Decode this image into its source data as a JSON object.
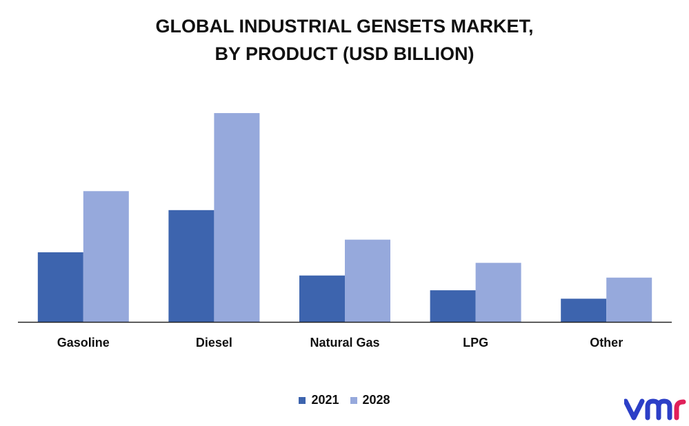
{
  "title_lines": [
    "GLOBAL INDUSTRIAL GENSETS MARKET,",
    "BY PRODUCT (USD BILLION)"
  ],
  "logo_text": "vmr",
  "chart_data": {
    "type": "bar",
    "title": "GLOBAL INDUSTRIAL GENSETS MARKET, BY PRODUCT (USD BILLION)",
    "categories": [
      "Gasoline",
      "Diesel",
      "Natural Gas",
      "LPG",
      "Other"
    ],
    "series": [
      {
        "name": "2021",
        "color": "#3d64ae",
        "values": [
          3.3,
          5.3,
          2.2,
          1.5,
          1.1
        ]
      },
      {
        "name": "2028",
        "color": "#96a9dc",
        "values": [
          6.2,
          9.9,
          3.9,
          2.8,
          2.1
        ]
      }
    ],
    "ylim": [
      0,
      10
    ],
    "grid": false,
    "legend_position": "bottom"
  }
}
